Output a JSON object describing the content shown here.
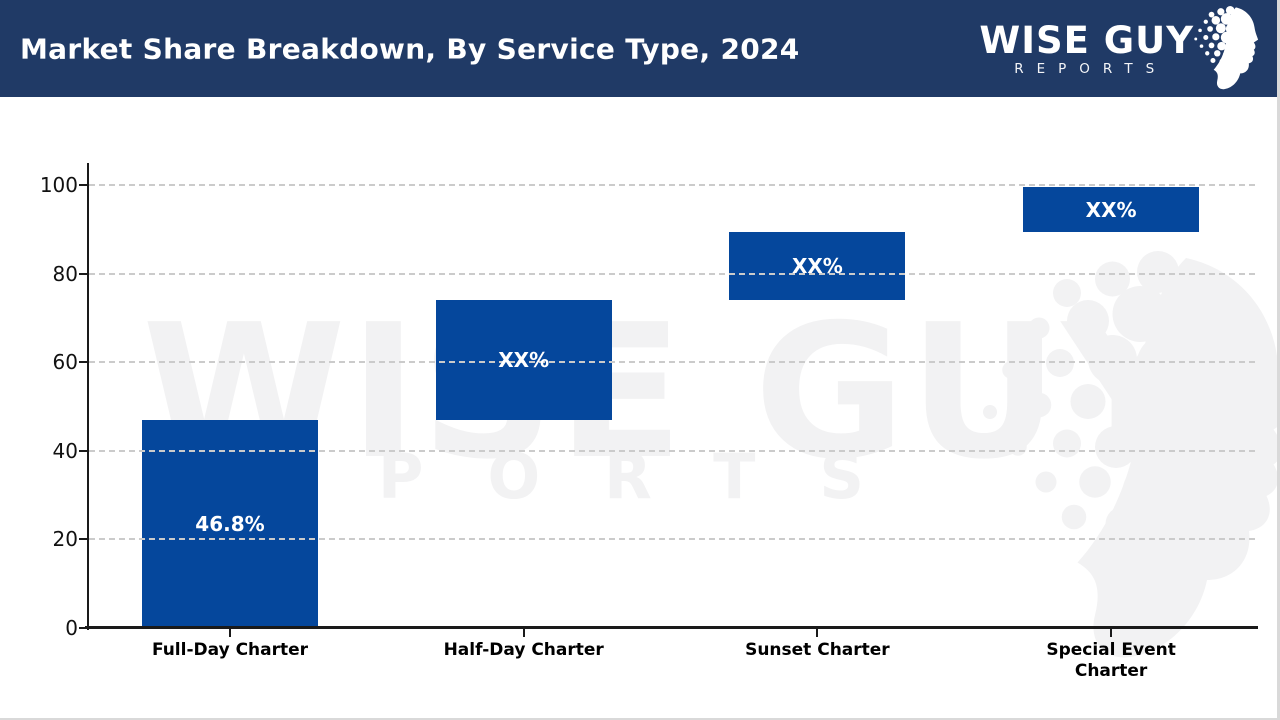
{
  "header": {
    "title": "Market Share Breakdown, By Service Type, 2024",
    "bg_color": "#203a66",
    "logo": {
      "name": "wise-guy-reports",
      "line1": "WISE GUY",
      "line2": "REPORTS"
    }
  },
  "watermark": {
    "line1": "WISE GUY",
    "line2": "PORTS"
  },
  "chart_data": {
    "type": "bar",
    "variant": "waterfall",
    "title": "Market Share Breakdown, By Service Type, 2024",
    "categories": [
      "Full-Day Charter",
      "Half-Day Charter",
      "Sunset Charter",
      "Special Event Charter"
    ],
    "categories_display": [
      "Full-Day Charter",
      "Half-Day Charter",
      "Sunset Charter",
      "Special Event\nCharter"
    ],
    "segments": [
      {
        "category": "Full-Day Charter",
        "start": 0,
        "end": 46.8,
        "label": "46.8%"
      },
      {
        "category": "Half-Day Charter",
        "start": 46.8,
        "end": 74.0,
        "label": "XX%"
      },
      {
        "category": "Sunset Charter",
        "start": 74.0,
        "end": 89.4,
        "label": "XX%"
      },
      {
        "category": "Special Event Charter",
        "start": 89.4,
        "end": 99.5,
        "label": "XX%"
      }
    ],
    "segment_heights_estimated": [
      46.8,
      27.2,
      15.4,
      10.1
    ],
    "displayed_bar_labels": [
      "46.8%",
      "XX%",
      "XX%",
      "XX%"
    ],
    "yticks": [
      0,
      20,
      40,
      60,
      80,
      100
    ],
    "ylim": [
      0,
      105
    ],
    "xlabel": "",
    "ylabel": "",
    "legend": "none",
    "grid": "horizontal dashed gridlines drawn above bars",
    "bar_color": "#05479c",
    "bar_label_color": "#ffffff",
    "grid_color": "#cbcbcb",
    "axis_color": "#1a1a1a",
    "watermark_color": "#f2f2f3"
  }
}
